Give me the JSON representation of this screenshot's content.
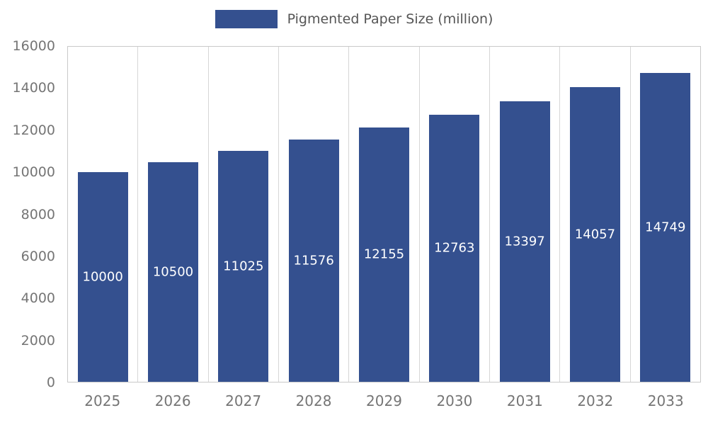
{
  "legend": {
    "label": "Pigmented Paper Size (million)"
  },
  "chart_data": {
    "type": "bar",
    "title": "Pigmented Paper Size (million)",
    "categories": [
      "2025",
      "2026",
      "2027",
      "2028",
      "2029",
      "2030",
      "2031",
      "2032",
      "2033"
    ],
    "values": [
      10000,
      10500,
      11025,
      11576,
      12155,
      12763,
      13397,
      14057,
      14749
    ],
    "xlabel": "",
    "ylabel": "",
    "ylim": [
      0,
      16000
    ],
    "ytick_step": 2000,
    "bar_color": "#34508F",
    "value_label_color": "#ffffff",
    "grid": true,
    "legend_position": "top"
  }
}
